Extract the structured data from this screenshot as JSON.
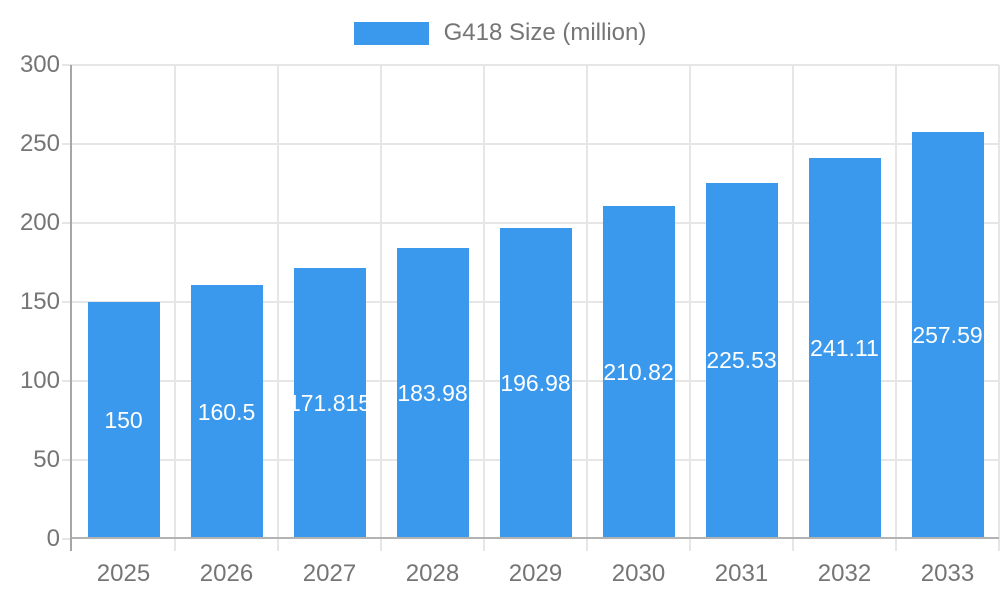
{
  "chart_data": {
    "type": "bar",
    "title": "",
    "legend": {
      "label": "G418 Size (million)",
      "position": "top"
    },
    "categories": [
      "2025",
      "2026",
      "2027",
      "2028",
      "2029",
      "2030",
      "2031",
      "2032",
      "2033"
    ],
    "series": [
      {
        "name": "G418 Size (million)",
        "values": [
          150,
          160.5,
          171.815,
          183.98,
          196.98,
          210.82,
          225.53,
          241.11,
          257.59
        ]
      }
    ],
    "value_labels": [
      "150",
      "160.5",
      "171.815",
      "183.98",
      "196.98",
      "210.82",
      "225.53",
      "241.11",
      "257.59"
    ],
    "xlabel": "",
    "ylabel": "",
    "ylim": [
      0,
      300
    ],
    "yticks": [
      0,
      50,
      100,
      150,
      200,
      250,
      300
    ],
    "grid": true,
    "legend_position": "top-center",
    "colors": {
      "bar": "#3A99EC",
      "gridline": "#E6E6E6",
      "axis_line": "#A6A6A6",
      "baseline": "#B3B3B3",
      "tick_text": "#757575",
      "bar_label_text": "#FFFFFF",
      "background": "#FFFFFF"
    }
  }
}
